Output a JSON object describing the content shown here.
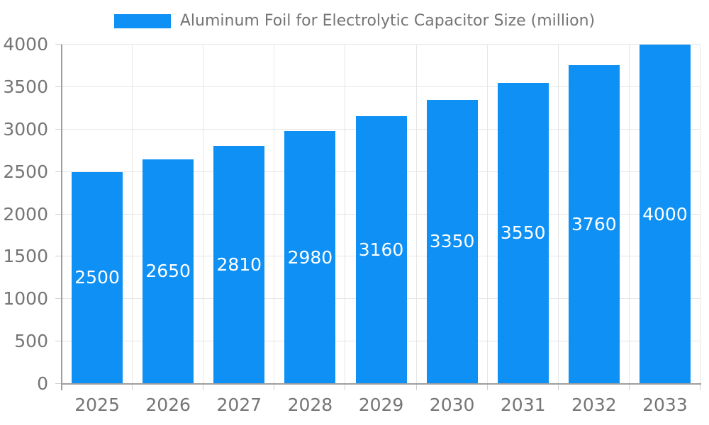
{
  "legend": {
    "label": "Aluminum Foil for Electrolytic Capacitor Size (million)"
  },
  "chart_data": {
    "type": "bar",
    "title": "Aluminum Foil for Electrolytic Capacitor Size (million)",
    "series_name": "Aluminum Foil for Electrolytic Capacitor Size (million)",
    "categories": [
      "2025",
      "2026",
      "2027",
      "2028",
      "2029",
      "2030",
      "2031",
      "2032",
      "2033"
    ],
    "values": [
      2500,
      2650,
      2810,
      2980,
      3160,
      3350,
      3550,
      3760,
      4000
    ],
    "xlabel": "",
    "ylabel": "",
    "ylim": [
      0,
      4000
    ],
    "yticks": [
      0,
      500,
      1000,
      1500,
      2000,
      2500,
      3000,
      3500,
      4000
    ],
    "grid": true,
    "legend_position": "top",
    "bar_color": "#0e90f5",
    "value_label_color": "#ffffff",
    "axis_text_color": "#757575",
    "gridline_color": "#e6e6e6",
    "tick_color": "#d0d0d0",
    "axis_line_color": "#9e9e9e"
  }
}
